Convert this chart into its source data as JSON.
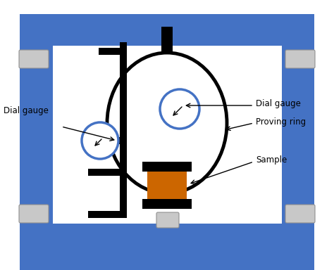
{
  "frame_color": "#4472C4",
  "bolt_color": "#C8C8C8",
  "bolt_outline": "#909090",
  "dial_gauge_color": "#4472C4",
  "sample_color": "#CC6600",
  "text_color": "black",
  "bg_color": "white",
  "labels": {
    "dial_gauge_right": "Dial gauge",
    "proving_ring": "Proving ring",
    "sample": "Sample",
    "dial_gauge_left": "Dial gauge"
  },
  "figsize": [
    4.74,
    3.84
  ],
  "dpi": 100
}
